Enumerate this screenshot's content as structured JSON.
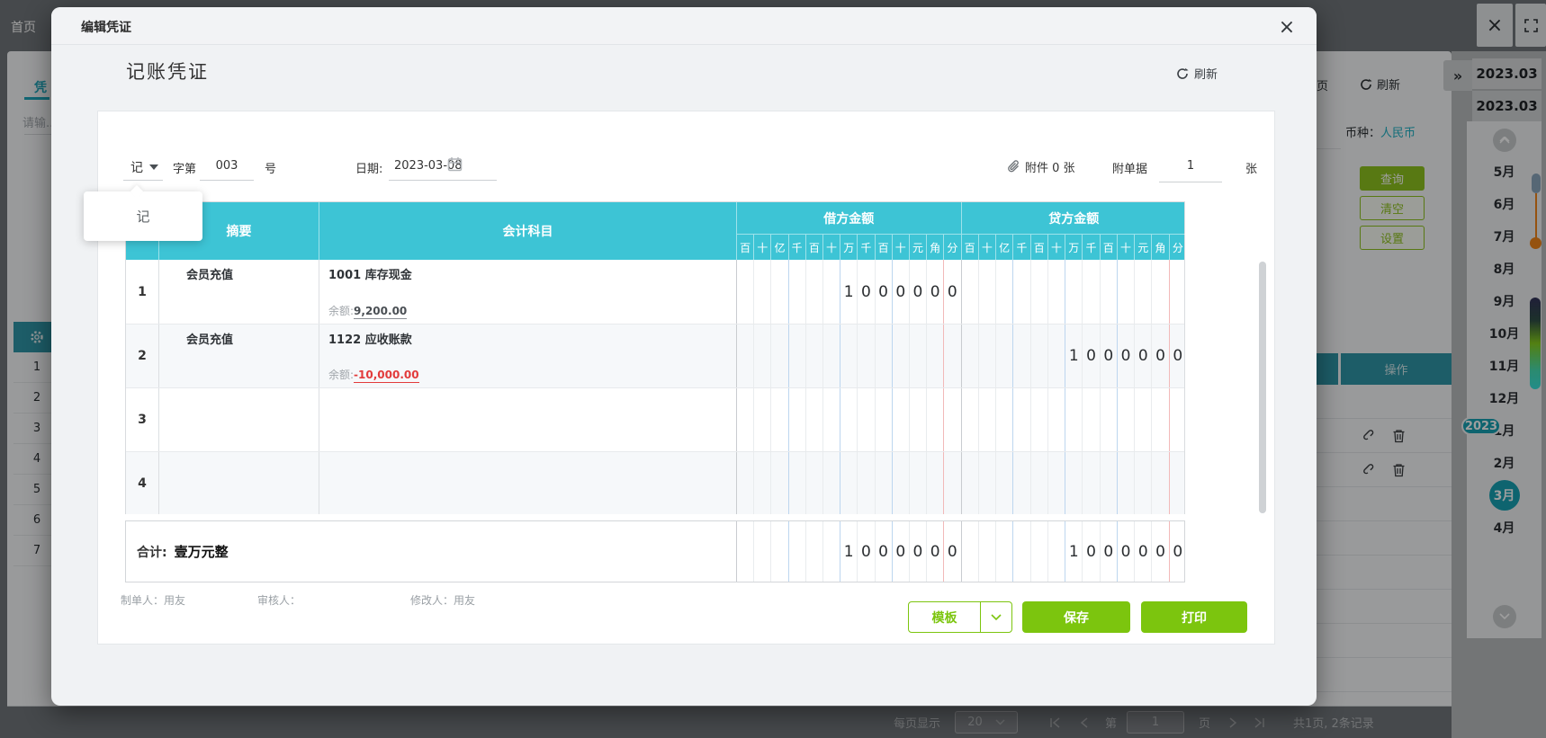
{
  "colors": {
    "table_header_teal": "#3dc4d5",
    "button_green": "#7cc50e",
    "bg_button_green": "#8fc31f",
    "negative_red": "#e23b3b",
    "accent_teal": "#18a2b4"
  },
  "dialog": {
    "title": "编辑凭证",
    "refresh_label": "刷新",
    "voucher_title": "记账凭证",
    "word_value": "记",
    "word_dropdown_item": "记",
    "word_suffix_label": "字第",
    "number_value": "003",
    "number_suffix": "号",
    "date_label": "日期:",
    "date_value": "2023-03-08",
    "attachment_label": "附件 0 张",
    "attached_docs_label": "附单据",
    "attached_docs_value": "1",
    "attached_docs_unit": "张",
    "table": {
      "summary_header": "摘要",
      "account_header": "会计科目",
      "debit_header": "借方金额",
      "credit_header": "贷方金额",
      "digit_labels": [
        "百",
        "十",
        "亿",
        "千",
        "百",
        "十",
        "万",
        "千",
        "百",
        "十",
        "元",
        "角",
        "分"
      ],
      "rows": [
        {
          "no": "1",
          "summary": "会员充值",
          "account": "1001 库存现金",
          "balance_label": "余额:",
          "balance": "9,200.00",
          "debit": "1000000",
          "credit": ""
        },
        {
          "no": "2",
          "summary": "会员充值",
          "account": "1122 应收账款",
          "balance_label": "余额:",
          "balance": "-10,000.00",
          "debit": "",
          "credit": "1000000"
        },
        {
          "no": "3",
          "summary": "",
          "account": "",
          "balance_label": "",
          "balance": "",
          "debit": "",
          "credit": ""
        },
        {
          "no": "4",
          "summary": "",
          "account": "",
          "balance_label": "",
          "balance": "",
          "debit": "",
          "credit": ""
        }
      ],
      "total_label": "合计:",
      "total_in_words": "壹万元整",
      "total_debit": "1000000",
      "total_credit": "1000000"
    },
    "footer": {
      "creator": "制单人：用友",
      "auditor": "审核人：",
      "modifier": "修改人：用友",
      "template_button": "模板",
      "save_button": "保存",
      "print_button": "打印"
    }
  },
  "background": {
    "home_tab": "首页",
    "left_panel": {
      "tab_label": "凭",
      "search_placeholder": "请输...",
      "row_numbers": [
        "1",
        "2",
        "3",
        "4",
        "5",
        "6",
        "7"
      ]
    },
    "page_partial": "页",
    "refresh_label": "刷新",
    "currency_label": "币种：",
    "currency_value": "人民币",
    "query_button": "查询",
    "clear_button": "清空",
    "settings_button": "设置",
    "expand_icon_label": "»",
    "period_top": "2023.03",
    "period_bottom": "2023.03",
    "ops_header": "操作",
    "ops_rows": [
      false,
      true,
      true,
      false,
      false,
      false,
      false,
      false,
      false
    ],
    "months": [
      "5月",
      "6月",
      "7月",
      "8月",
      "9月",
      "10月",
      "11月",
      "12月",
      "1月",
      "2月",
      "3月",
      "4月"
    ],
    "selected_month": "3月",
    "year_badge": "2023",
    "pagination": {
      "per_page_label": "每页显示",
      "per_page_value": "20",
      "page_prefix": "第",
      "page_value": "1",
      "page_suffix": "页",
      "summary": "共1页, 2条记录"
    }
  }
}
